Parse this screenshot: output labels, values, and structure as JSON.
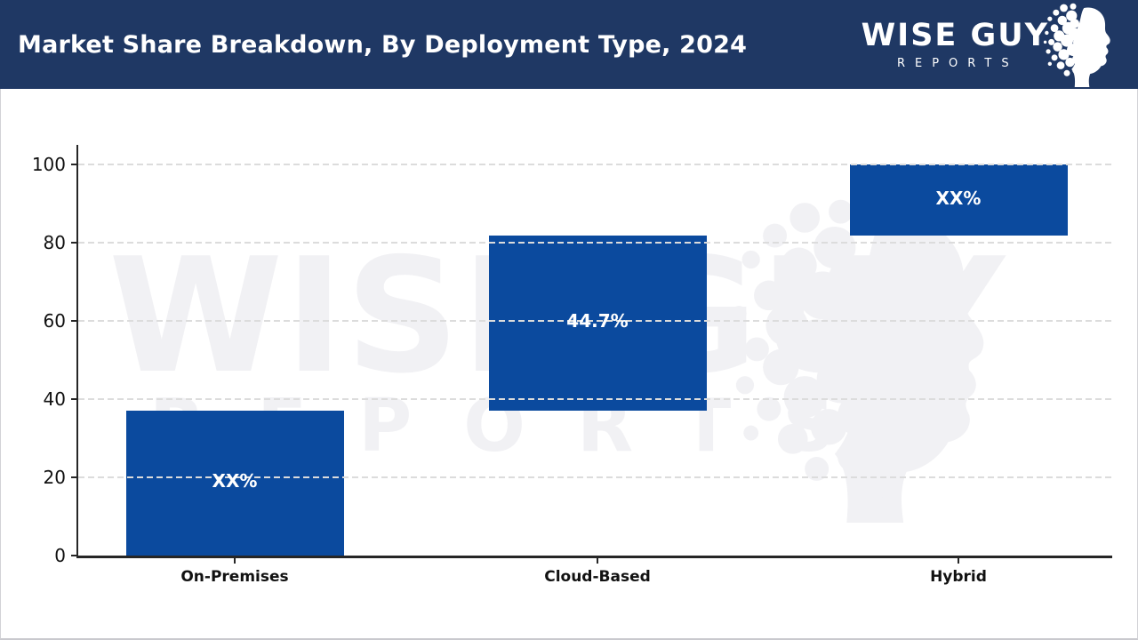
{
  "header": {
    "title": "Market Share Breakdown, By Deployment Type, 2024",
    "logo": {
      "wordmark": "WISE GUY",
      "subtext": "REPORTS"
    }
  },
  "watermark": {
    "wordmark": "WISE GUY",
    "subtext": "REPORTS"
  },
  "colors": {
    "header_bg": "#1F3864",
    "bar_fill": "#0B4A9E",
    "bar_label_text": "#FFFFFF",
    "grid_line": "#DCDCDC",
    "axis_line": "#262626",
    "watermark": "#F1F1F4"
  },
  "chart_data": {
    "type": "bar",
    "subtype": "floating-waterfall",
    "title": "Market Share Breakdown, By Deployment Type, 2024",
    "categories": [
      "On-Premises",
      "Cloud-Based",
      "Hybrid"
    ],
    "bars": [
      {
        "category": "On-Premises",
        "start": 0,
        "end": 37.1,
        "label": "XX%"
      },
      {
        "category": "Cloud-Based",
        "start": 37.1,
        "end": 81.8,
        "label": "44.7%"
      },
      {
        "category": "Hybrid",
        "start": 81.8,
        "end": 100,
        "label": "XX%"
      }
    ],
    "xlabel": "",
    "ylabel": "",
    "ylim": [
      0,
      100
    ],
    "yticks": [
      0,
      20,
      40,
      60,
      80,
      100
    ],
    "grid": "horizontal-dashed",
    "legend": "none"
  }
}
